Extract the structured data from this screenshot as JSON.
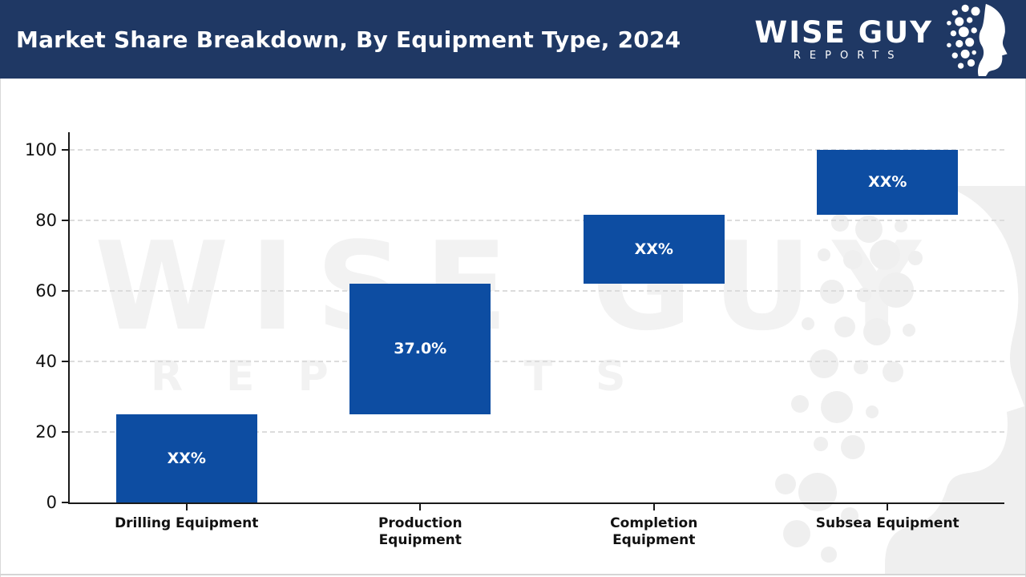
{
  "header": {
    "title": "Market Share Breakdown, By Equipment Type, 2024",
    "brand": {
      "line1": "WISE GUY",
      "line2": "REPORTS"
    }
  },
  "watermark": {
    "line1": "WISE GUY",
    "line2": "REPORTS"
  },
  "chart_data": {
    "type": "bar",
    "subtype": "floating-segment-waterfall",
    "title": "Market Share Breakdown, By Equipment Type, 2024",
    "categories": [
      "Drilling Equipment",
      "Production Equipment",
      "Completion Equipment",
      "Subsea Equipment"
    ],
    "category_label_lines": [
      [
        "Drilling Equipment"
      ],
      [
        "Production",
        "Equipment"
      ],
      [
        "Completion",
        "Equipment"
      ],
      [
        "Subsea Equipment"
      ]
    ],
    "series": [
      {
        "name": "Market Share (%)",
        "segments": [
          {
            "category": "Drilling Equipment",
            "start": 0,
            "end": 25,
            "label": "XX%"
          },
          {
            "category": "Production Equipment",
            "start": 25,
            "end": 62,
            "label": "37.0%"
          },
          {
            "category": "Completion Equipment",
            "start": 62,
            "end": 81.5,
            "label": "XX%"
          },
          {
            "category": "Subsea Equipment",
            "start": 81.5,
            "end": 100,
            "label": "XX%"
          }
        ]
      }
    ],
    "ylim": [
      0,
      100
    ],
    "yticks": [
      0,
      20,
      40,
      60,
      80,
      100
    ],
    "xlabel": "",
    "ylabel": "",
    "grid": "horizontal-dashed",
    "legend": "none",
    "bar_color": "#0d4da2",
    "bar_label_color": "#ffffff"
  },
  "colors": {
    "header_bg": "#1f3864",
    "bar": "#0d4da2",
    "grid": "#dcdcdc",
    "axis": "#1a1a1a",
    "watermark": "#f2f2f2",
    "edge": "#d9d9d9"
  }
}
